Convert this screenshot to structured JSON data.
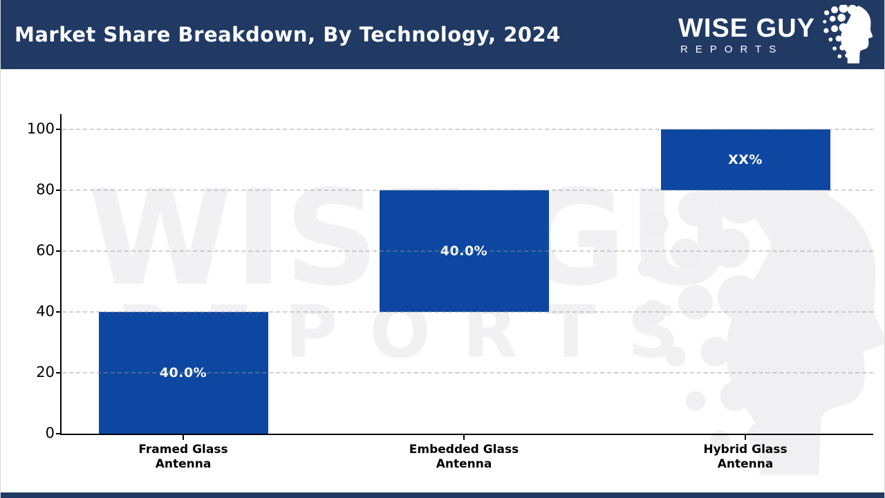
{
  "header": {
    "title": "Market Share Breakdown, By Technology, 2024",
    "logo": {
      "name": "WISE GUY",
      "sub": "REPORTS"
    }
  },
  "watermark": {
    "line1": "WISE GUY",
    "line2": "REPORTS"
  },
  "colors": {
    "header_bg": "#213a64",
    "bar": "#0d47a1",
    "bar_label_text": "#ffffff",
    "axis": "#000000",
    "grid": "#c9c9c9",
    "watermark": "#f1f1f4",
    "footer_bar": "#213a64"
  },
  "chart_data": {
    "type": "bar",
    "subtype": "floating-segment-waterfall",
    "title": "Market Share Breakdown, By Technology, 2024",
    "categories": [
      [
        "Framed Glass",
        "Antenna"
      ],
      [
        "Embedded Glass",
        "Antenna"
      ],
      [
        "Hybrid Glass",
        "Antenna"
      ]
    ],
    "segments": [
      {
        "category": "Framed Glass Antenna",
        "start": 0,
        "end": 40,
        "label": "40.0%"
      },
      {
        "category": "Embedded Glass Antenna",
        "start": 40,
        "end": 80,
        "label": "40.0%"
      },
      {
        "category": "Hybrid Glass Antenna",
        "start": 80,
        "end": 100,
        "label": "XX%"
      }
    ],
    "yticks": [
      0,
      20,
      40,
      60,
      80,
      100
    ],
    "ylim": [
      0,
      100
    ],
    "xlabel": "",
    "ylabel": "",
    "grid": "dashed-horizontal",
    "legend": "none",
    "bar_color": "#0d47a1"
  }
}
